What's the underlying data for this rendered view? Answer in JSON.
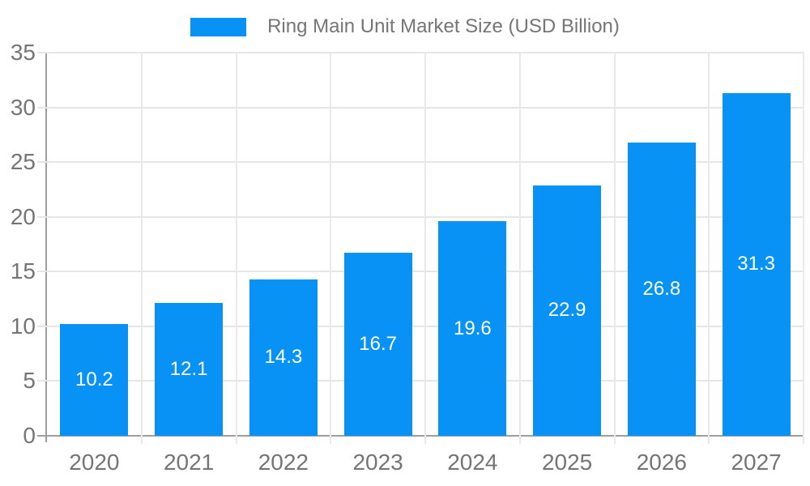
{
  "legend": {
    "label": "Ring Main Unit Market Size (USD Billion)"
  },
  "chart_data": {
    "type": "bar",
    "title": "Ring Main Unit Market Size (USD Billion)",
    "categories": [
      "2020",
      "2021",
      "2022",
      "2023",
      "2024",
      "2025",
      "2026",
      "2027"
    ],
    "values": [
      10.2,
      12.1,
      14.3,
      16.7,
      19.6,
      22.9,
      26.8,
      31.3
    ],
    "series": [
      {
        "name": "Ring Main Unit Market Size (USD Billion)",
        "values": [
          10.2,
          12.1,
          14.3,
          16.7,
          19.6,
          22.9,
          26.8,
          31.3
        ]
      }
    ],
    "xlabel": "",
    "ylabel": "",
    "ylim": [
      0,
      35
    ],
    "ytick_step": 5,
    "yticks": [
      0,
      5,
      10,
      15,
      20,
      25,
      30,
      35
    ],
    "grid": true,
    "legend_position": "top-center",
    "value_labels": "inside-center",
    "colors": {
      "bar": "#0892f5",
      "value_label": "#ffffff",
      "axis_text": "#757575",
      "axis_line": "#9e9e9e",
      "gridline": "#e6e6e6"
    }
  }
}
